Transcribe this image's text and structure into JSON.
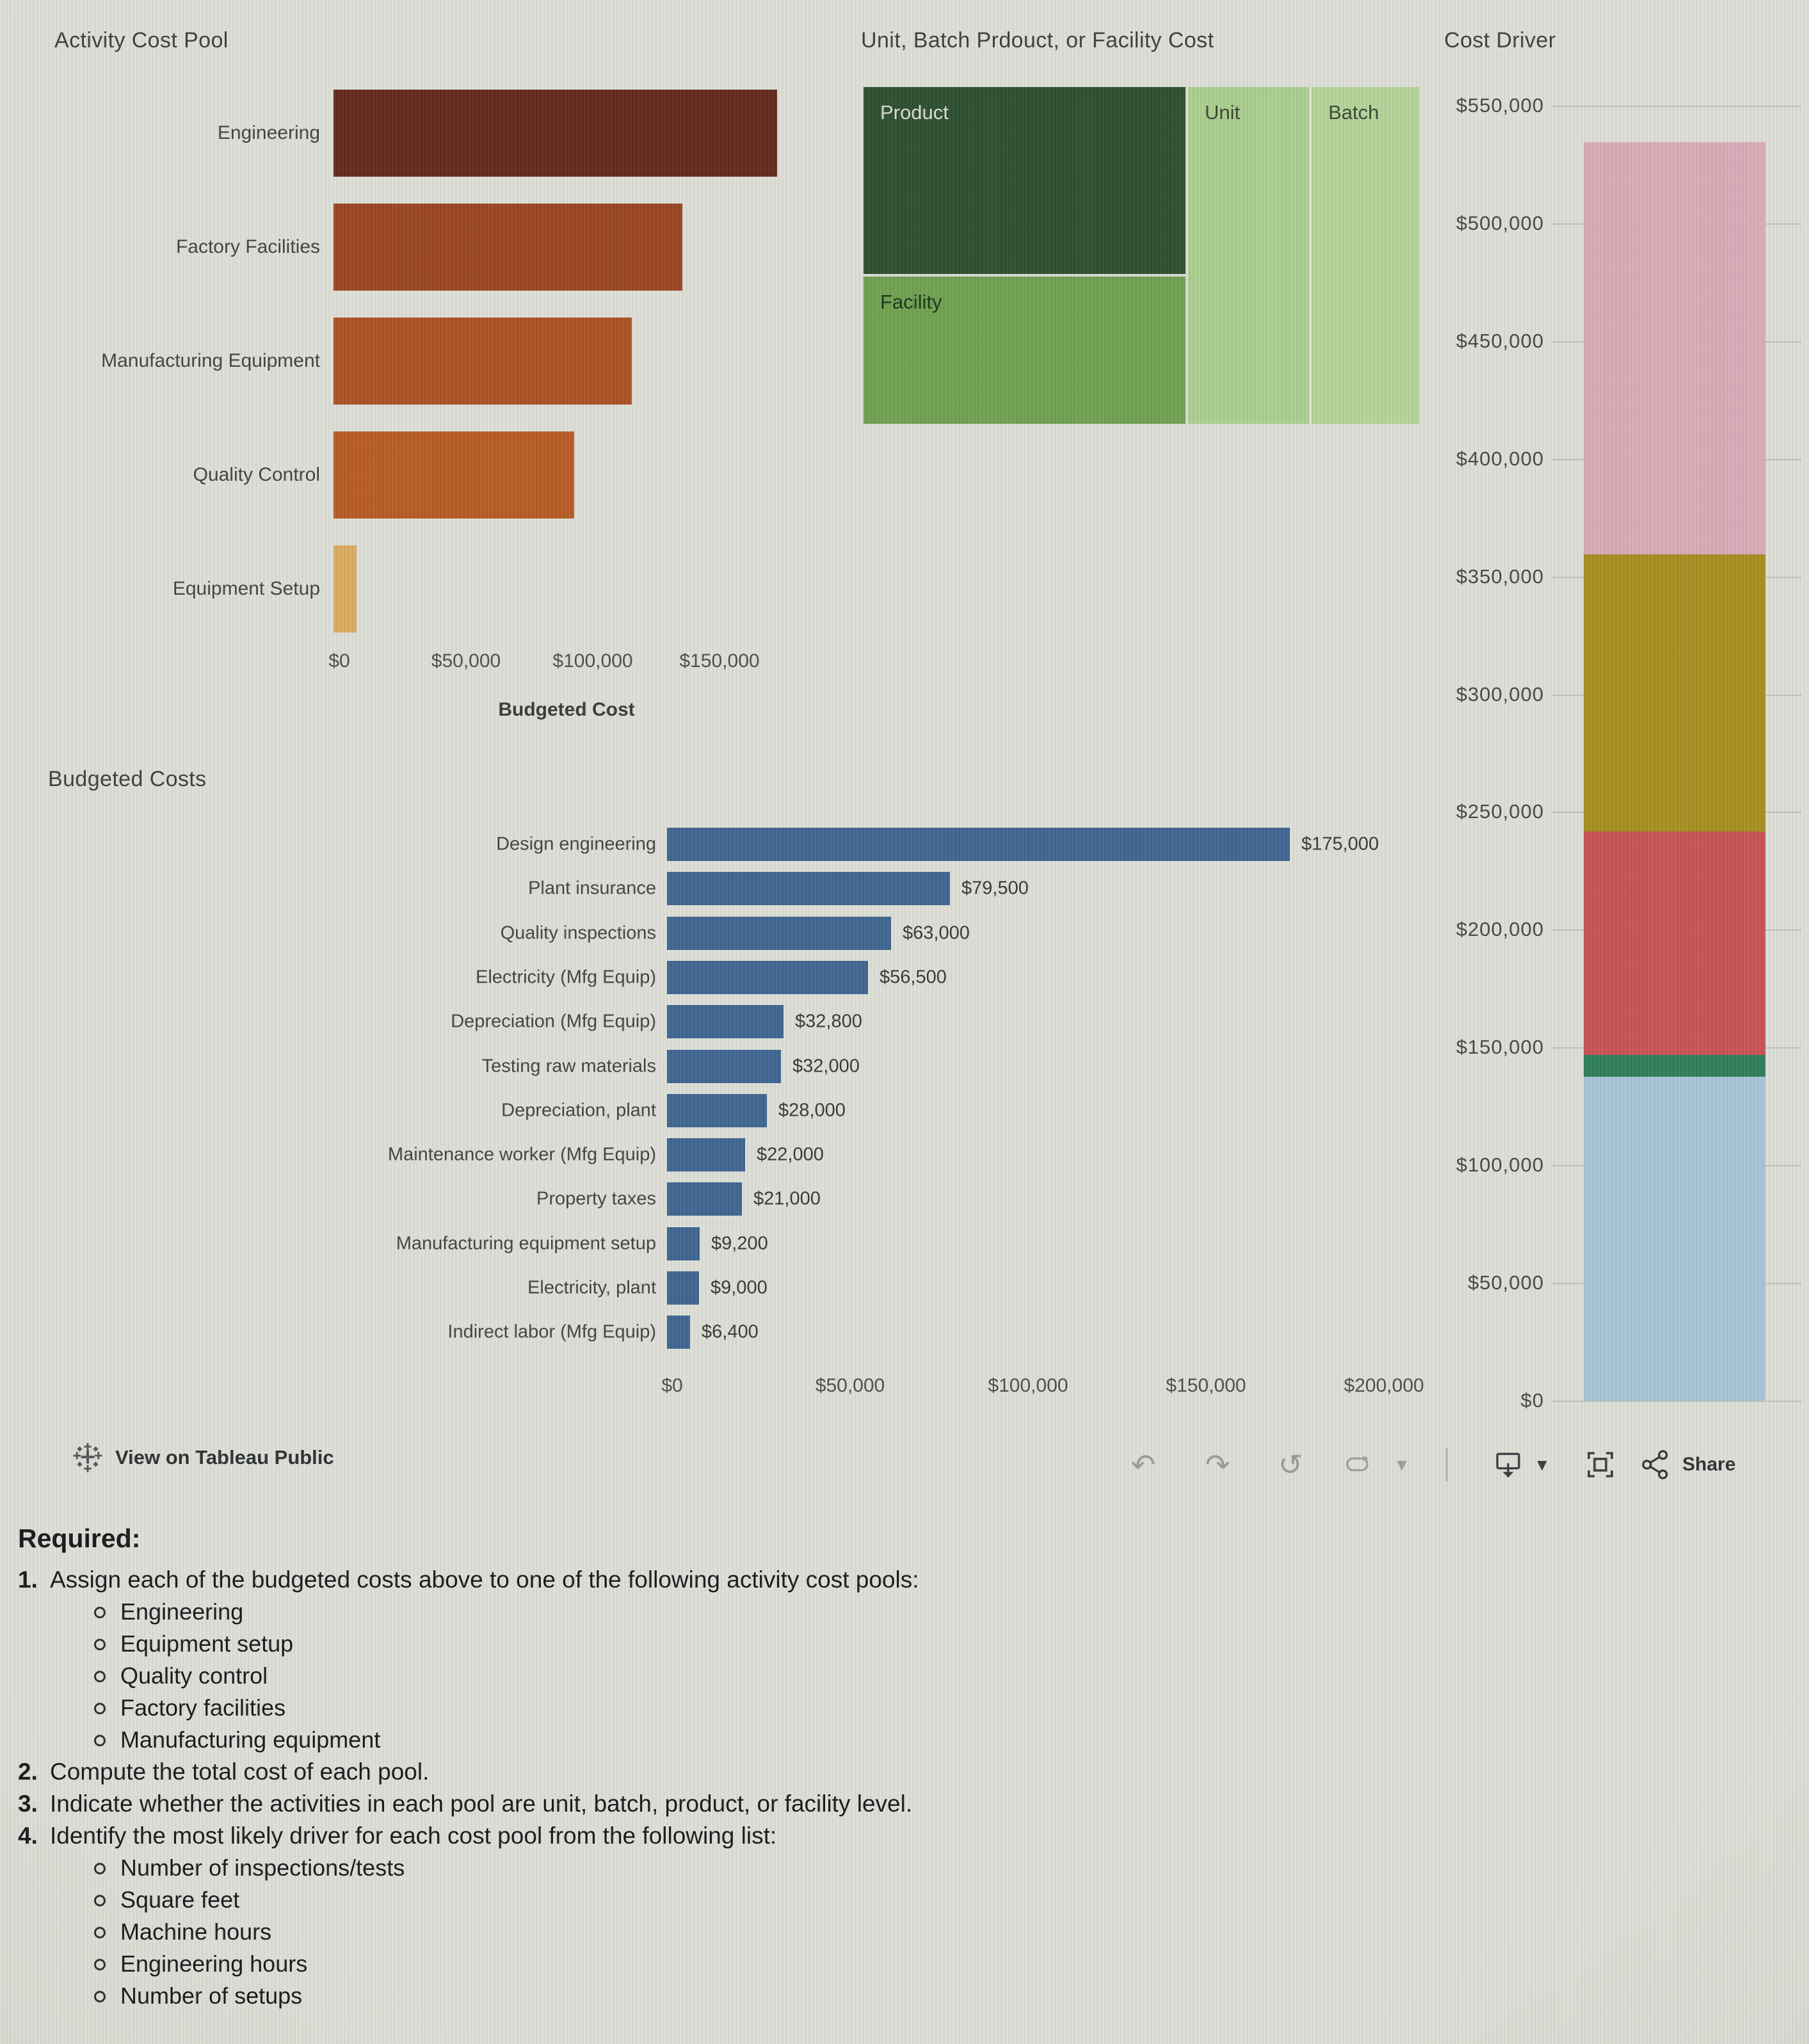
{
  "toolbar": {
    "view_link": "View on Tableau Public",
    "share_label": "Share",
    "icons": [
      "tableau-logo",
      "undo",
      "redo",
      "replay",
      "refresh",
      "download",
      "fullscreen",
      "share"
    ]
  },
  "required": {
    "heading": "Required:",
    "items": [
      {
        "num": "1.",
        "text": "Assign each of the budgeted costs above to one of the following activity cost pools:",
        "bullets": [
          "Engineering",
          "Equipment setup",
          "Quality control",
          "Factory facilities",
          "Manufacturing equipment"
        ]
      },
      {
        "num": "2.",
        "text": "Compute the total cost of each pool.",
        "bullets": []
      },
      {
        "num": "3.",
        "text": "Indicate whether the activities in each pool are unit, batch, product, or facility level.",
        "bullets": []
      },
      {
        "num": "4.",
        "text": "Identify the most likely driver for each cost pool from the following list:",
        "bullets": [
          "Number of inspections/tests",
          "Square feet",
          "Machine hours",
          "Engineering hours",
          "Number of setups"
        ]
      }
    ]
  },
  "chart_data": [
    {
      "type": "bar",
      "orientation": "horizontal",
      "title": "Activity Cost Pool",
      "xlabel": "Budgeted Cost",
      "categories": [
        "Engineering",
        "Factory Facilities",
        "Manufacturing Equipment",
        "Quality Control",
        "Equipment Setup"
      ],
      "values": [
        175000,
        137500,
        117700,
        95000,
        9200
      ],
      "bar_colors": [
        "#63291c",
        "#9a4522",
        "#ab5124",
        "#b75b24",
        "#d8ab5e"
      ],
      "x_tick_labels": [
        "$0",
        "$50,000",
        "$100,000",
        "$150,000"
      ],
      "x_tick_values": [
        0,
        50000,
        100000,
        150000
      ],
      "xlim": [
        0,
        184000
      ],
      "grid": false
    },
    {
      "type": "treemap",
      "title": "Unit, Batch Prdouct, or Facility Cost",
      "cells": [
        {
          "label": "Product",
          "value": 175000,
          "color": "#2d4f30",
          "text_color": "#d9ddd3"
        },
        {
          "label": "Facility",
          "value": 137500,
          "color": "#6fa050",
          "text_color": "#1f3418"
        },
        {
          "label": "Unit",
          "value": 117700,
          "color": "#a9cd8e",
          "text_color": "#3c4634"
        },
        {
          "label": "Batch",
          "value": 104200,
          "color": "#b2d399",
          "text_color": "#3c4634"
        }
      ]
    },
    {
      "type": "bar",
      "orientation": "horizontal",
      "title": "Budgeted Costs",
      "categories": [
        "Design engineering",
        "Plant insurance",
        "Quality inspections",
        "Electricity (Mfg Equip)",
        "Depreciation (Mfg Equip)",
        "Testing raw materials",
        "Depreciation, plant",
        "Maintenance worker (Mfg Equip)",
        "Property taxes",
        "Manufacturing equipment setup",
        "Electricity, plant",
        "Indirect labor (Mfg Equip)"
      ],
      "values": [
        175000,
        79500,
        63000,
        56500,
        32800,
        32000,
        28000,
        22000,
        21000,
        9200,
        9000,
        6400
      ],
      "value_labels": [
        "$175,000",
        "$79,500",
        "$63,000",
        "$56,500",
        "$32,800",
        "$32,000",
        "$28,000",
        "$22,000",
        "$21,000",
        "$9,200",
        "$9,000",
        "$6,400"
      ],
      "bar_color": "#3e6590",
      "x_tick_labels": [
        "$0",
        "$50,000",
        "$100,000",
        "$150,000",
        "$200,000"
      ],
      "x_tick_values": [
        0,
        50000,
        100000,
        150000,
        200000
      ],
      "xlim": [
        0,
        210000
      ],
      "grid": false
    },
    {
      "type": "stacked-bar",
      "orientation": "vertical",
      "title": "Cost Driver",
      "y_tick_labels": [
        "$550,000",
        "$500,000",
        "$450,000",
        "$400,000",
        "$350,000",
        "$300,000",
        "$250,000",
        "$200,000",
        "$150,000",
        "$100,000",
        "$50,000",
        "$0"
      ],
      "y_tick_values": [
        550000,
        500000,
        450000,
        400000,
        350000,
        300000,
        250000,
        200000,
        150000,
        100000,
        50000,
        0
      ],
      "ylim": [
        0,
        550000
      ],
      "grid": true,
      "segments_bottom_to_top": [
        {
          "value": 137500,
          "color": "#a6c3d6"
        },
        {
          "value": 9200,
          "color": "#2f7e5b"
        },
        {
          "value": 95000,
          "color": "#c75254"
        },
        {
          "value": 117700,
          "color": "#a58e20"
        },
        {
          "value": 175000,
          "color": "#d9a9b6"
        }
      ]
    }
  ]
}
